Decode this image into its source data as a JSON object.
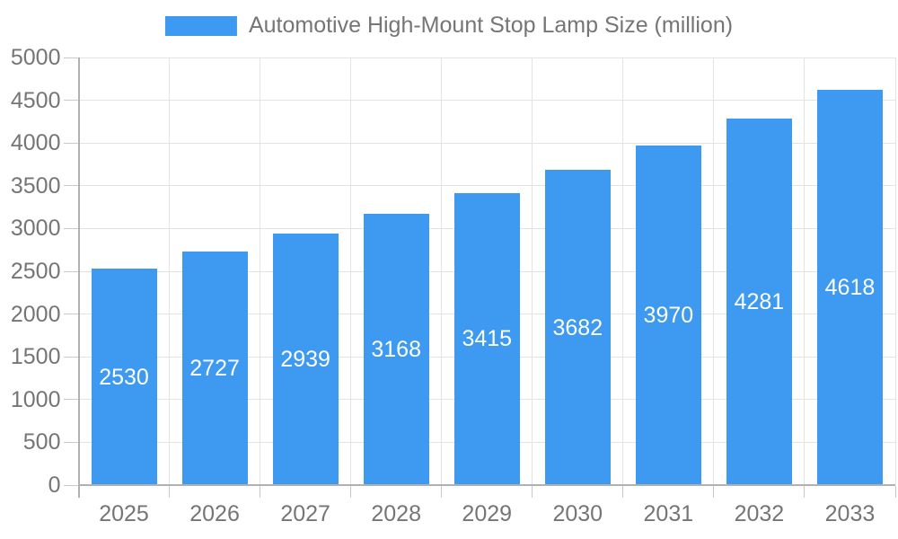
{
  "legend": {
    "items": [
      {
        "label": "Automotive High-Mount Stop Lamp Size (million)",
        "color": "#3d9af0"
      }
    ]
  },
  "chart_data": {
    "type": "bar",
    "title": "Automotive High-Mount Stop Lamp Size (million)",
    "categories": [
      "2025",
      "2026",
      "2027",
      "2028",
      "2029",
      "2030",
      "2031",
      "2032",
      "2033"
    ],
    "series": [
      {
        "name": "Automotive High-Mount Stop Lamp Size (million)",
        "color": "#3d9af0",
        "values": [
          2530,
          2727,
          2939,
          3168,
          3415,
          3682,
          3970,
          4281,
          4618
        ]
      }
    ],
    "xlabel": "",
    "ylabel": "",
    "ylim": [
      0,
      5000
    ],
    "ytick_step": 500,
    "yticks": [
      "0",
      "500",
      "1000",
      "1500",
      "2000",
      "2500",
      "3000",
      "3500",
      "4000",
      "4500",
      "5000"
    ],
    "grid": true,
    "legend_position": "top-center",
    "value_label_position": "inside-middle",
    "colors": {
      "bar": "#3d9af0",
      "axis_text": "#757575",
      "value_label": "#ffffff",
      "grid_line": "#e3e3e3",
      "axis_line": "#b1b1b1",
      "tick_line": "#c9c9c9",
      "background": "#ffffff"
    }
  }
}
